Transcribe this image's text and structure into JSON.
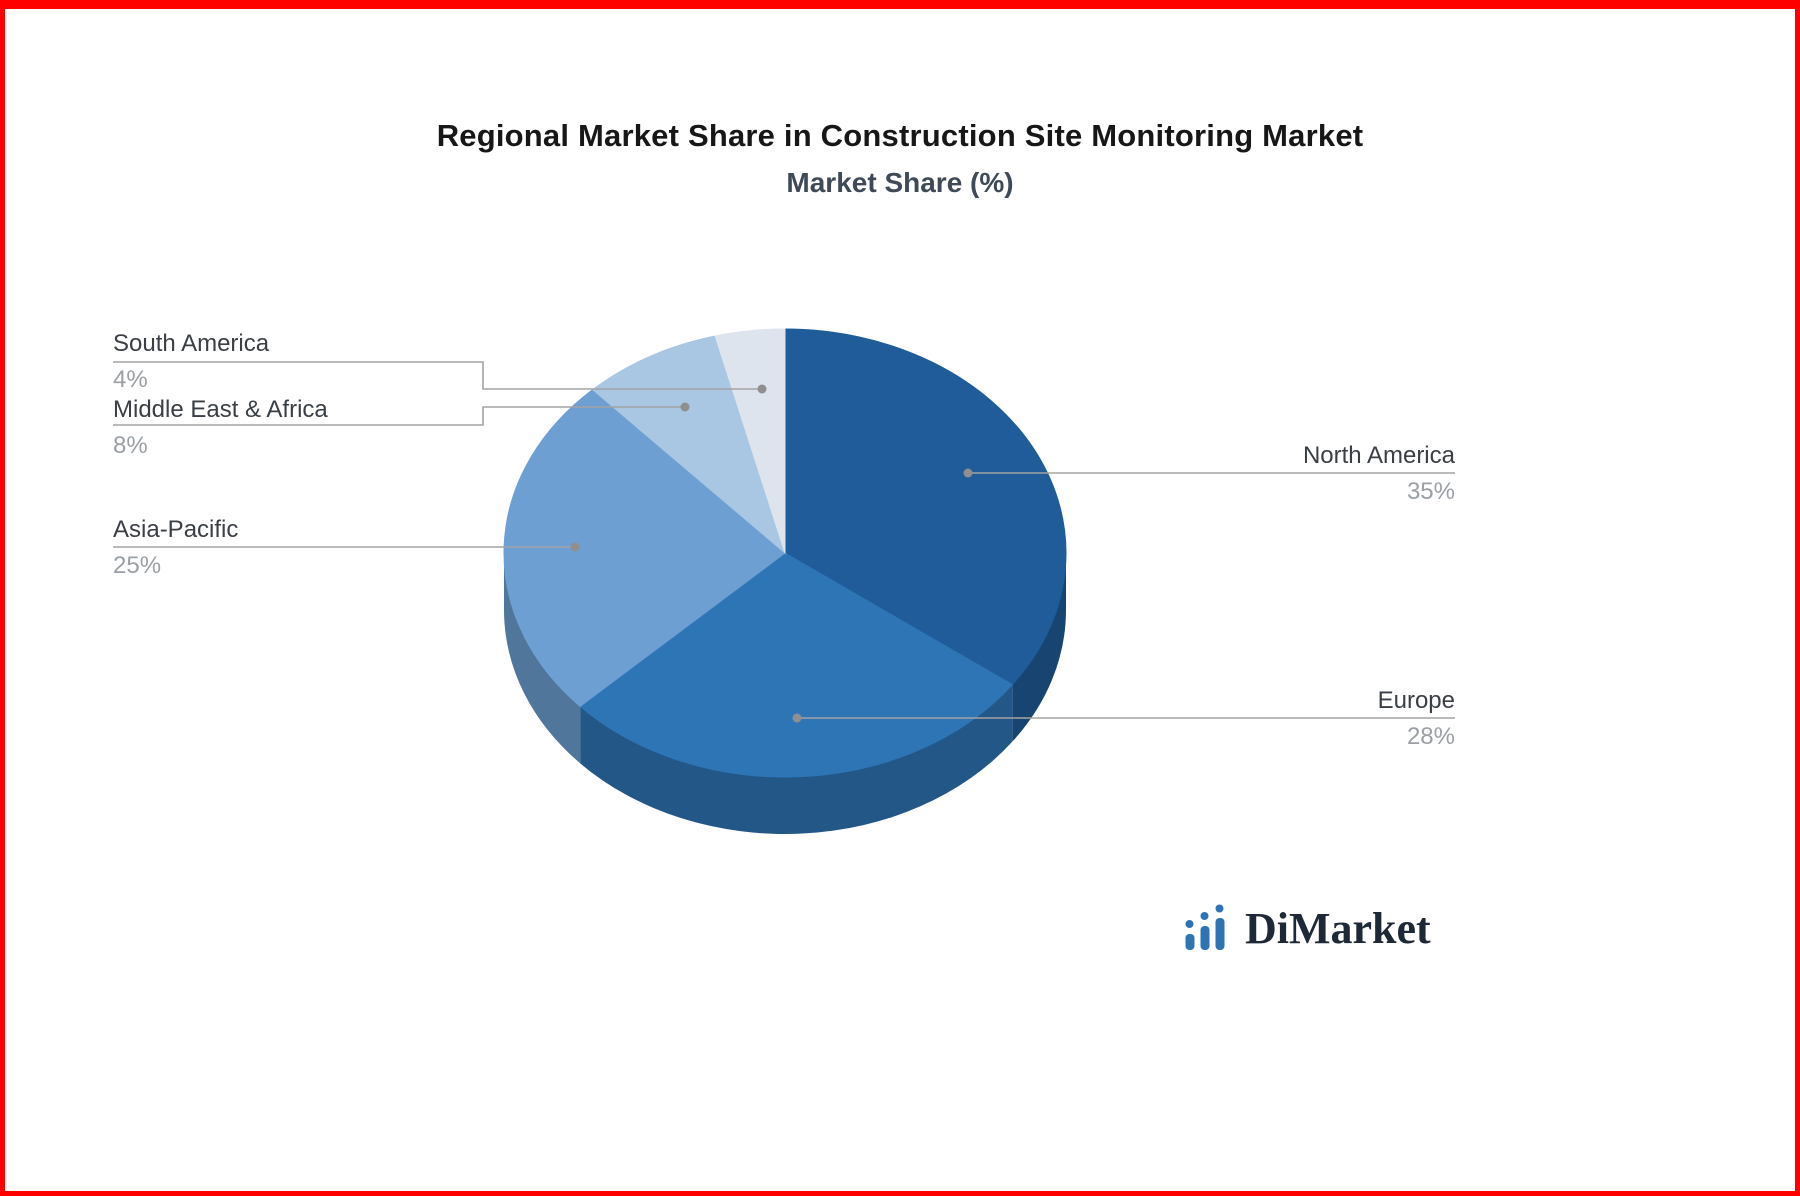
{
  "header": {
    "title": "Regional Market Share in Construction Site Monitoring Market",
    "subtitle": "Market Share (%)"
  },
  "chart_data": {
    "type": "pie",
    "title": "Regional Market Share in Construction Site Monitoring Market",
    "subtitle": "Market Share (%)",
    "unit": "%",
    "labels": [
      "North America",
      "Europe",
      "Asia-Pacific",
      "Middle East & Africa",
      "South America"
    ],
    "values": [
      35,
      28,
      25,
      8,
      4
    ],
    "display_values": [
      "35%",
      "28%",
      "25%",
      "8%",
      "4%"
    ],
    "colors": [
      "#1f5c99",
      "#2e75b6",
      "#6d9fd2",
      "#a9c6e3",
      "#dde4ee"
    ],
    "start_angle_deg": -90,
    "direction": "clockwise",
    "effect": "3d",
    "legend": "none",
    "leader_line_color": "#a3a3a3",
    "value_text_color": "#9aa0a6"
  },
  "branding": {
    "logo_text": "DiMarket",
    "logo_icon": "bar-chart-icon",
    "logo_color": "#2e74b5",
    "logo_text_color": "#1d2936"
  }
}
